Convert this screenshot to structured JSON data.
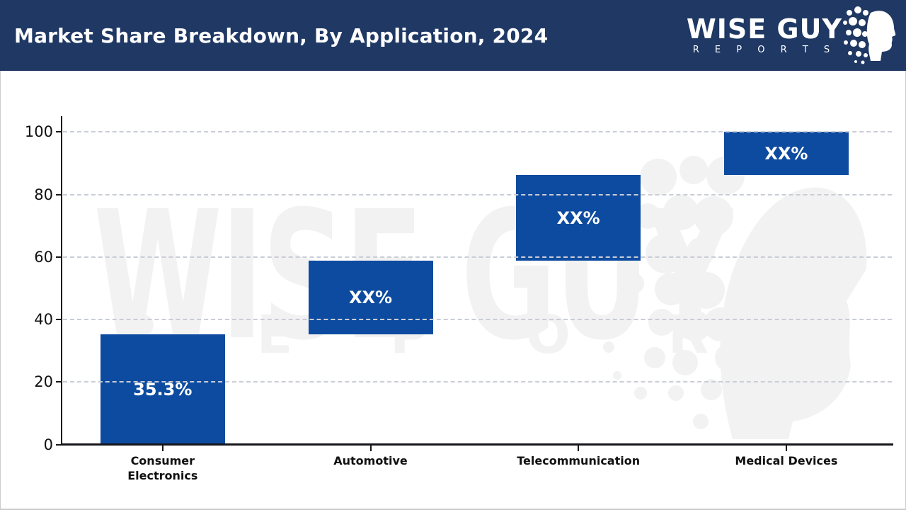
{
  "header": {
    "title": "Market Share Breakdown, By Application, 2024"
  },
  "logo": {
    "line1": "WISE GUY",
    "line2": "R E P O R T S"
  },
  "watermark": {
    "line1": "WISE GUY",
    "line2": "R E P O R T S"
  },
  "chart_data": {
    "type": "bar",
    "subtype": "floating-waterfall",
    "title": "Market Share Breakdown, By Application, 2024",
    "categories": [
      "Consumer Electronics",
      "Automotive",
      "Telecommunication",
      "Medical Devices"
    ],
    "tick_labels": [
      "Consumer\nElectronics",
      "Automotive",
      "Telecommunication",
      "Medical Devices"
    ],
    "segments": [
      {
        "category": "Consumer Electronics",
        "start": 0,
        "end": 35.3,
        "label": "35.3%"
      },
      {
        "category": "Automotive",
        "start": 35.3,
        "end": 58.8,
        "label": "XX%"
      },
      {
        "category": "Telecommunication",
        "start": 58.8,
        "end": 86.2,
        "label": "XX%"
      },
      {
        "category": "Medical Devices",
        "start": 86.2,
        "end": 100,
        "label": "XX%"
      }
    ],
    "xlabel": "",
    "ylabel": "",
    "ylim": [
      0,
      100
    ],
    "yticks": [
      0,
      20,
      40,
      60,
      80,
      100
    ],
    "grid": "horizontal-dashed",
    "legend": "none",
    "bar_color": "#0d4ba0",
    "bar_label_color": "#ffffff",
    "header_color": "#1F3864",
    "gridline_color": "#c9cdd6",
    "watermark_color": "#f2f2f2"
  }
}
